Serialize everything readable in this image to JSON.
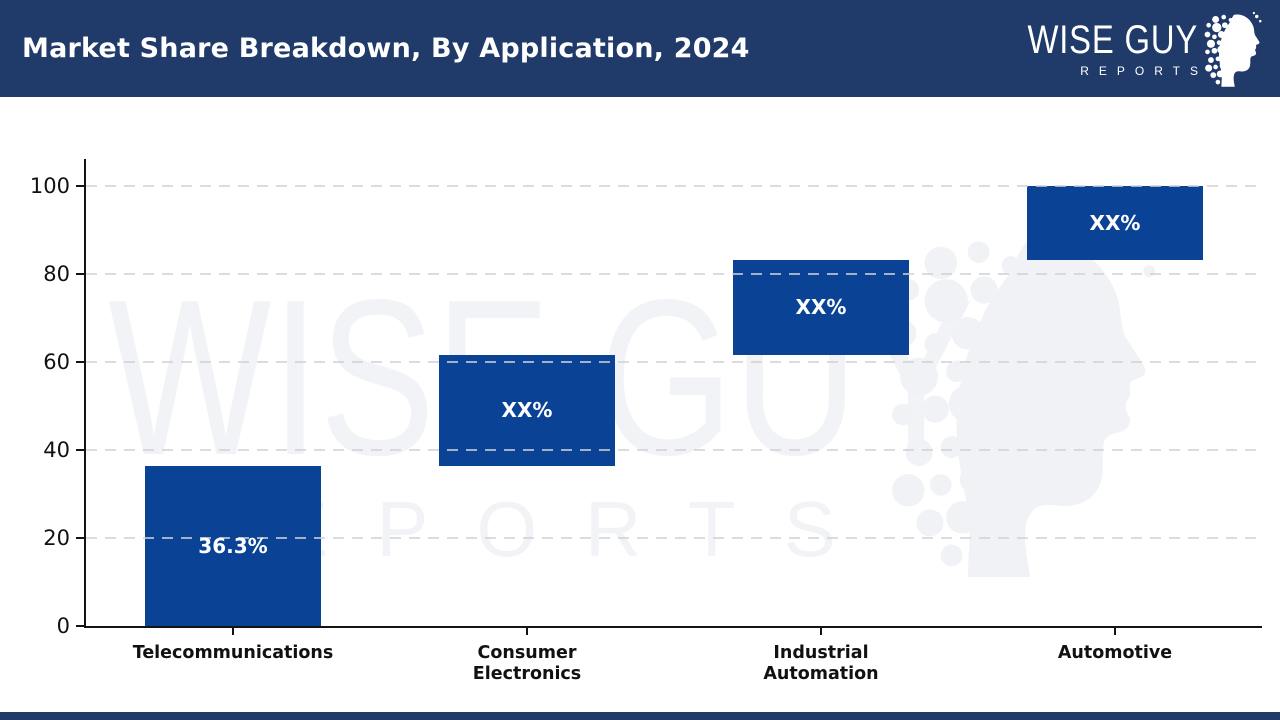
{
  "header": {
    "title": "Market Share Breakdown, By Application, 2024",
    "logo": {
      "line1": "WISE GUY",
      "line2": "REPORTS"
    }
  },
  "watermark": {
    "line1": "WISE GUY",
    "line2": "REPORTS"
  },
  "colors": {
    "header_bg": "#203a69",
    "footer_bg": "#203a69",
    "bar": "#0a4396",
    "bar_label": "#ffffff",
    "axis": "#141414",
    "gridline": "#d4d6da",
    "watermark": "#f2f3f6"
  },
  "chart_data": {
    "type": "bar",
    "subtype": "waterfall-floating-bars",
    "title": "Market Share Breakdown, By Application, 2024",
    "xlabel": "",
    "ylabel": "",
    "categories": [
      "Telecommunications",
      "Consumer Electronics",
      "Industrial Automation",
      "Automotive"
    ],
    "category_lines": [
      [
        "Telecommunications"
      ],
      [
        "Consumer",
        "Electronics"
      ],
      [
        "Industrial",
        "Automation"
      ],
      [
        "Automotive"
      ]
    ],
    "bars": [
      {
        "category": "Telecommunications",
        "start": 0,
        "end": 36.3,
        "label": "36.3%"
      },
      {
        "category": "Consumer Electronics",
        "start": 36.3,
        "end": 61.7,
        "label": "XX%"
      },
      {
        "category": "Industrial Automation",
        "start": 61.7,
        "end": 83.2,
        "label": "XX%"
      },
      {
        "category": "Automotive",
        "start": 83.2,
        "end": 100,
        "label": "XX%"
      }
    ],
    "yticks": [
      0,
      20,
      40,
      60,
      80,
      100
    ],
    "ylim": [
      0,
      106
    ],
    "grid": "horizontal dashed, drawn over bars",
    "legend": "none"
  }
}
